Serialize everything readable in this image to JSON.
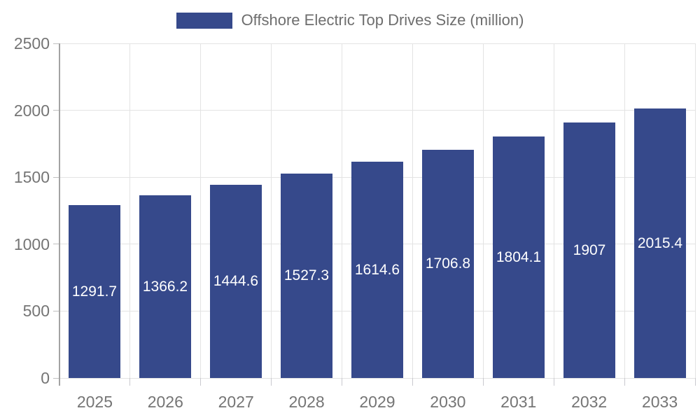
{
  "legend": {
    "position": "top",
    "swatch_color": "#36498b"
  },
  "chart_data": {
    "type": "bar",
    "title": "",
    "categories": [
      "2025",
      "2026",
      "2027",
      "2028",
      "2029",
      "2030",
      "2031",
      "2032",
      "2033"
    ],
    "series": [
      {
        "name": "Offshore Electric Top Drives Size (million)",
        "values": [
          1291.7,
          1366.2,
          1444.6,
          1527.3,
          1614.6,
          1706.8,
          1804.1,
          1907,
          2015.4
        ]
      }
    ],
    "xlabel": "",
    "ylabel": "",
    "ylim": [
      0,
      2500
    ],
    "yticks": [
      0,
      500,
      1000,
      1500,
      2000,
      2500
    ],
    "grid": true,
    "legend_position": "top",
    "bar_color": "#36498b",
    "bar_label_color": "#ffffff",
    "axis_label_color": "#757575",
    "gridline_color": "#e3e3e3"
  }
}
